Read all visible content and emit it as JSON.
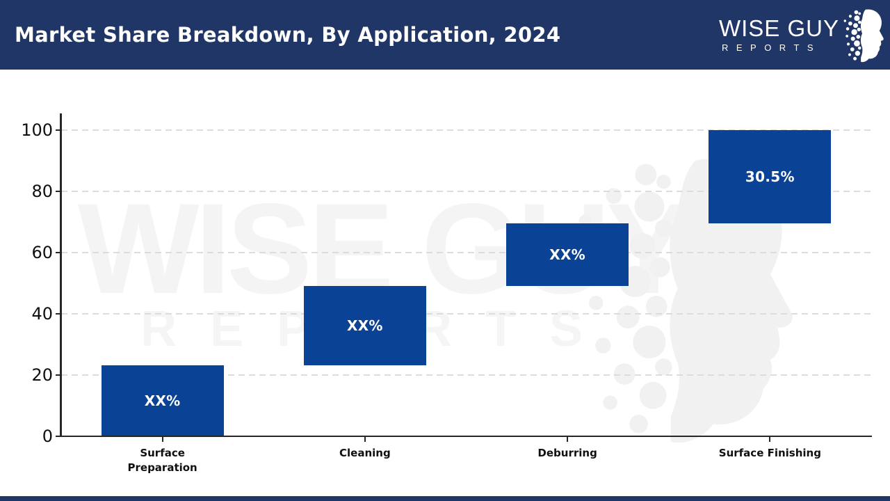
{
  "header": {
    "title": "Market Share Breakdown, By Application, 2024",
    "logo": {
      "brand_line1": "WISE GUY",
      "brand_line2": "REPORTS"
    },
    "colors": {
      "background": "#203666",
      "text": "#ffffff"
    }
  },
  "watermark": {
    "word": "WISE GUY",
    "sub": "REPORTS"
  },
  "chart_data": {
    "type": "bar",
    "subtype": "waterfall",
    "title": "Market Share Breakdown, By Application, 2024",
    "categories": [
      "Surface Preparation",
      "Cleaning",
      "Deburring",
      "Surface Finishing"
    ],
    "tick_labels": [
      "Surface\nPreparation",
      "Cleaning",
      "Deburring",
      "Surface Finishing"
    ],
    "series": [
      {
        "name": "Market share (%)",
        "segments": [
          {
            "category": "Surface Preparation",
            "start": 0,
            "end": 23.2,
            "value": 23.2,
            "label": "XX%"
          },
          {
            "category": "Cleaning",
            "start": 23.2,
            "end": 49.1,
            "value": 25.9,
            "label": "XX%"
          },
          {
            "category": "Deburring",
            "start": 49.1,
            "end": 69.5,
            "value": 20.4,
            "label": "XX%"
          },
          {
            "category": "Surface Finishing",
            "start": 69.5,
            "end": 100,
            "value": 30.5,
            "label": "30.5%"
          }
        ]
      }
    ],
    "xlabel": "",
    "ylabel": "",
    "ylim": [
      0,
      100
    ],
    "yticks": [
      0,
      20,
      40,
      60,
      80,
      100
    ],
    "grid": "horizontal-dashed",
    "legend": "none",
    "colors": {
      "bar": "#0a4296",
      "bar_label": "#ffffff",
      "axis": "#262626",
      "gridline": "#dcdcdc",
      "tick_text": "#101010"
    }
  },
  "footer": {
    "color": "#203666"
  }
}
